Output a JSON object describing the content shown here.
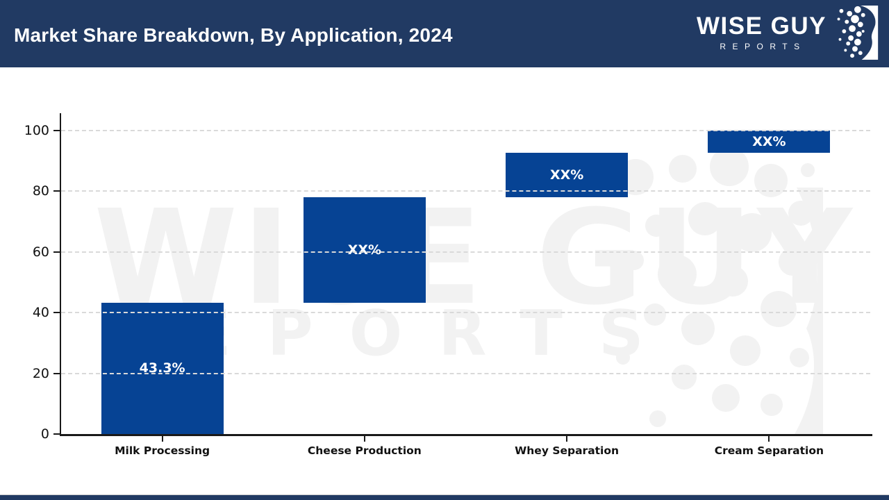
{
  "header": {
    "title": "Market Share Breakdown, By Application, 2024",
    "logo": {
      "name": "WISE GUY",
      "sub": "REPORTS"
    }
  },
  "watermark": {
    "line1": "WISE GUY",
    "line2": "REPORTS"
  },
  "colors": {
    "navy": "#213a63",
    "bar_blue": "#064394",
    "grid": "#d9d9d9",
    "axis": "#1a1a1a",
    "watermark_gray": "#f2f2f2"
  },
  "chart_data": {
    "type": "bar",
    "subtype": "waterfall",
    "title": "Market Share Breakdown, By Application, 2024",
    "categories": [
      "Milk Processing",
      "Cheese Production",
      "Whey Separation",
      "Cream Separation"
    ],
    "segments": [
      {
        "category": "Milk Processing",
        "start": 0,
        "end": 43.3,
        "label": "43.3%"
      },
      {
        "category": "Cheese Production",
        "start": 43.3,
        "end": 78,
        "label": "XX%"
      },
      {
        "category": "Whey Separation",
        "start": 78,
        "end": 92.5,
        "label": "XX%"
      },
      {
        "category": "Cream Separation",
        "start": 92.5,
        "end": 100,
        "label": "XX%"
      }
    ],
    "yticks": [
      0,
      20,
      40,
      60,
      80,
      100
    ],
    "ylim": [
      0,
      105
    ],
    "grid": "horizontal-dashed",
    "legend": "none",
    "bar_color": "#064394",
    "bar_label_color": "#ffffff"
  }
}
